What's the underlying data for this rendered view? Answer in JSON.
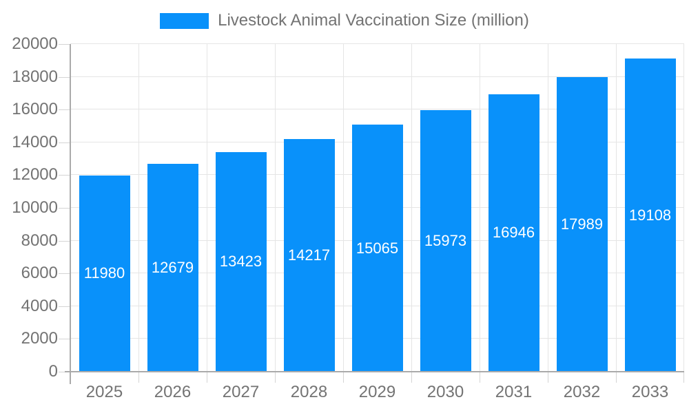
{
  "legend": {
    "label": "Livestock Animal Vaccination Size (million)"
  },
  "colors": {
    "bar": "#0991fa",
    "grid": "#e5e5e5",
    "axis": "#aaaaaa",
    "tick": "#d4d4d4",
    "text": "#737373",
    "bar_label": "#ffffff",
    "background": "#ffffff"
  },
  "chart_data": {
    "type": "bar",
    "title": "Livestock Animal Vaccination Size (million)",
    "categories": [
      "2025",
      "2026",
      "2027",
      "2028",
      "2029",
      "2030",
      "2031",
      "2032",
      "2033"
    ],
    "values": [
      11980,
      12679,
      13423,
      14217,
      15065,
      15973,
      16946,
      17989,
      19108
    ],
    "series_name": "Livestock Animal Vaccination Size (million)",
    "xlabel": "",
    "ylabel": "",
    "ylim": [
      0,
      20000
    ],
    "ytick_step": 2000,
    "ytick_labels": [
      "0",
      "2000",
      "4000",
      "6000",
      "8000",
      "10000",
      "12000",
      "14000",
      "16000",
      "18000",
      "20000"
    ],
    "grid": true,
    "legend_position": "top",
    "bar_label_position": "inside-center"
  }
}
